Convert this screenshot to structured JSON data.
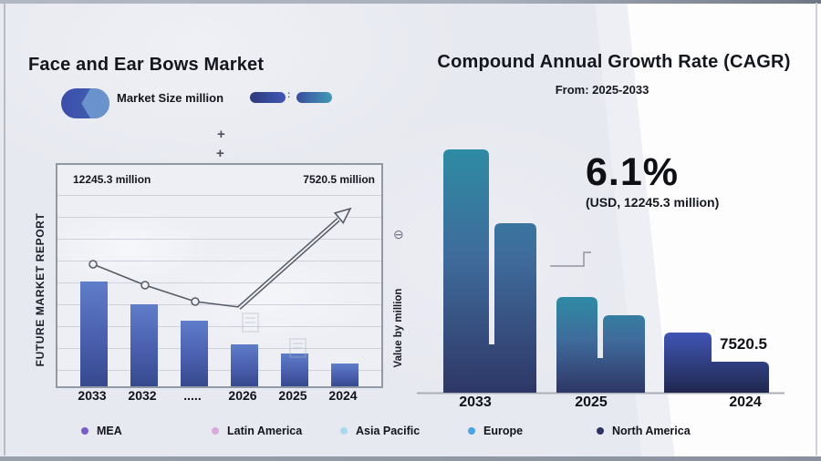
{
  "header": {
    "left_title": "Face and Ear Bows Market",
    "badge_label": "Market Size million",
    "right_title": "Compound Annual Growth Rate (CAGR)",
    "right_subtitle": "From: 2025-2033"
  },
  "left_chart": {
    "start_value_label": "12245.3 million",
    "end_value_label": "7520.5 million",
    "axis_left_label": "FUTURE MARKET REPORT",
    "axis_right_label": "Value by million"
  },
  "cagr": {
    "value": "6.1%",
    "note": "(USD, 12245.3 million)",
    "callout_value": "7520.5"
  },
  "legend": {
    "items": [
      {
        "label": "MEA",
        "color": "#7b5bc7"
      },
      {
        "label": "Latin America",
        "color": "#d9a9dc"
      },
      {
        "label": "Asia Pacific",
        "color": "#a9d9ec"
      },
      {
        "label": "Europe",
        "color": "#4aa3e2"
      },
      {
        "label": "North America",
        "color": "#2d3464"
      }
    ]
  },
  "decor": {
    "plus": "+",
    "minus_icon": "⊖",
    "colon": ":"
  },
  "colors": {
    "background": "#e7e9f0",
    "panel_white": "#fdfdfe",
    "left_bar_top": "#5f7dc8",
    "left_bar_bottom": "#36498e",
    "right_bar_teal_top": "#2e8ba4",
    "right_bar_teal_bottom": "#2e3766",
    "right_bar_blue_top": "#4055b4",
    "right_bar_blue_bottom": "#20284f",
    "trend_line": "#565b64"
  },
  "chart_data": [
    {
      "type": "bar",
      "title": "Face and Ear Bows Market - Market Size million",
      "categories": [
        "2033",
        "2032",
        ".....",
        "2026",
        "2025",
        "2024"
      ],
      "values_million_est": [
        12245.3,
        10930,
        9990,
        8620,
        8100,
        7520.5
      ],
      "labeled_values": {
        "2033": 12245.3,
        "2024": 7520.5
      },
      "ylabel": "Value by million",
      "annotations": [
        "12245.3 million",
        "7520.5 million"
      ],
      "trend_line": "declining line with 3 markers from 2033 to 2026, then upward double-line arrow to top right",
      "grid": "horizontal gridlines, no y tick labels"
    },
    {
      "type": "bar",
      "title": "Compound Annual Growth Rate (CAGR) From: 2025-2033",
      "categories": [
        "2033",
        "2025",
        "2024"
      ],
      "series": [
        {
          "name": "primary",
          "values_million_est": [
            12245.3,
            8960,
            8170
          ]
        },
        {
          "name": "secondary",
          "values_million_est": [
            10600,
            8555,
            7520.5
          ]
        }
      ],
      "cagr_percent": 6.1,
      "annotations": [
        "6.1%",
        "(USD, 12245.3 million)",
        "7520.5"
      ],
      "grid": "off, baseline axis only"
    }
  ]
}
